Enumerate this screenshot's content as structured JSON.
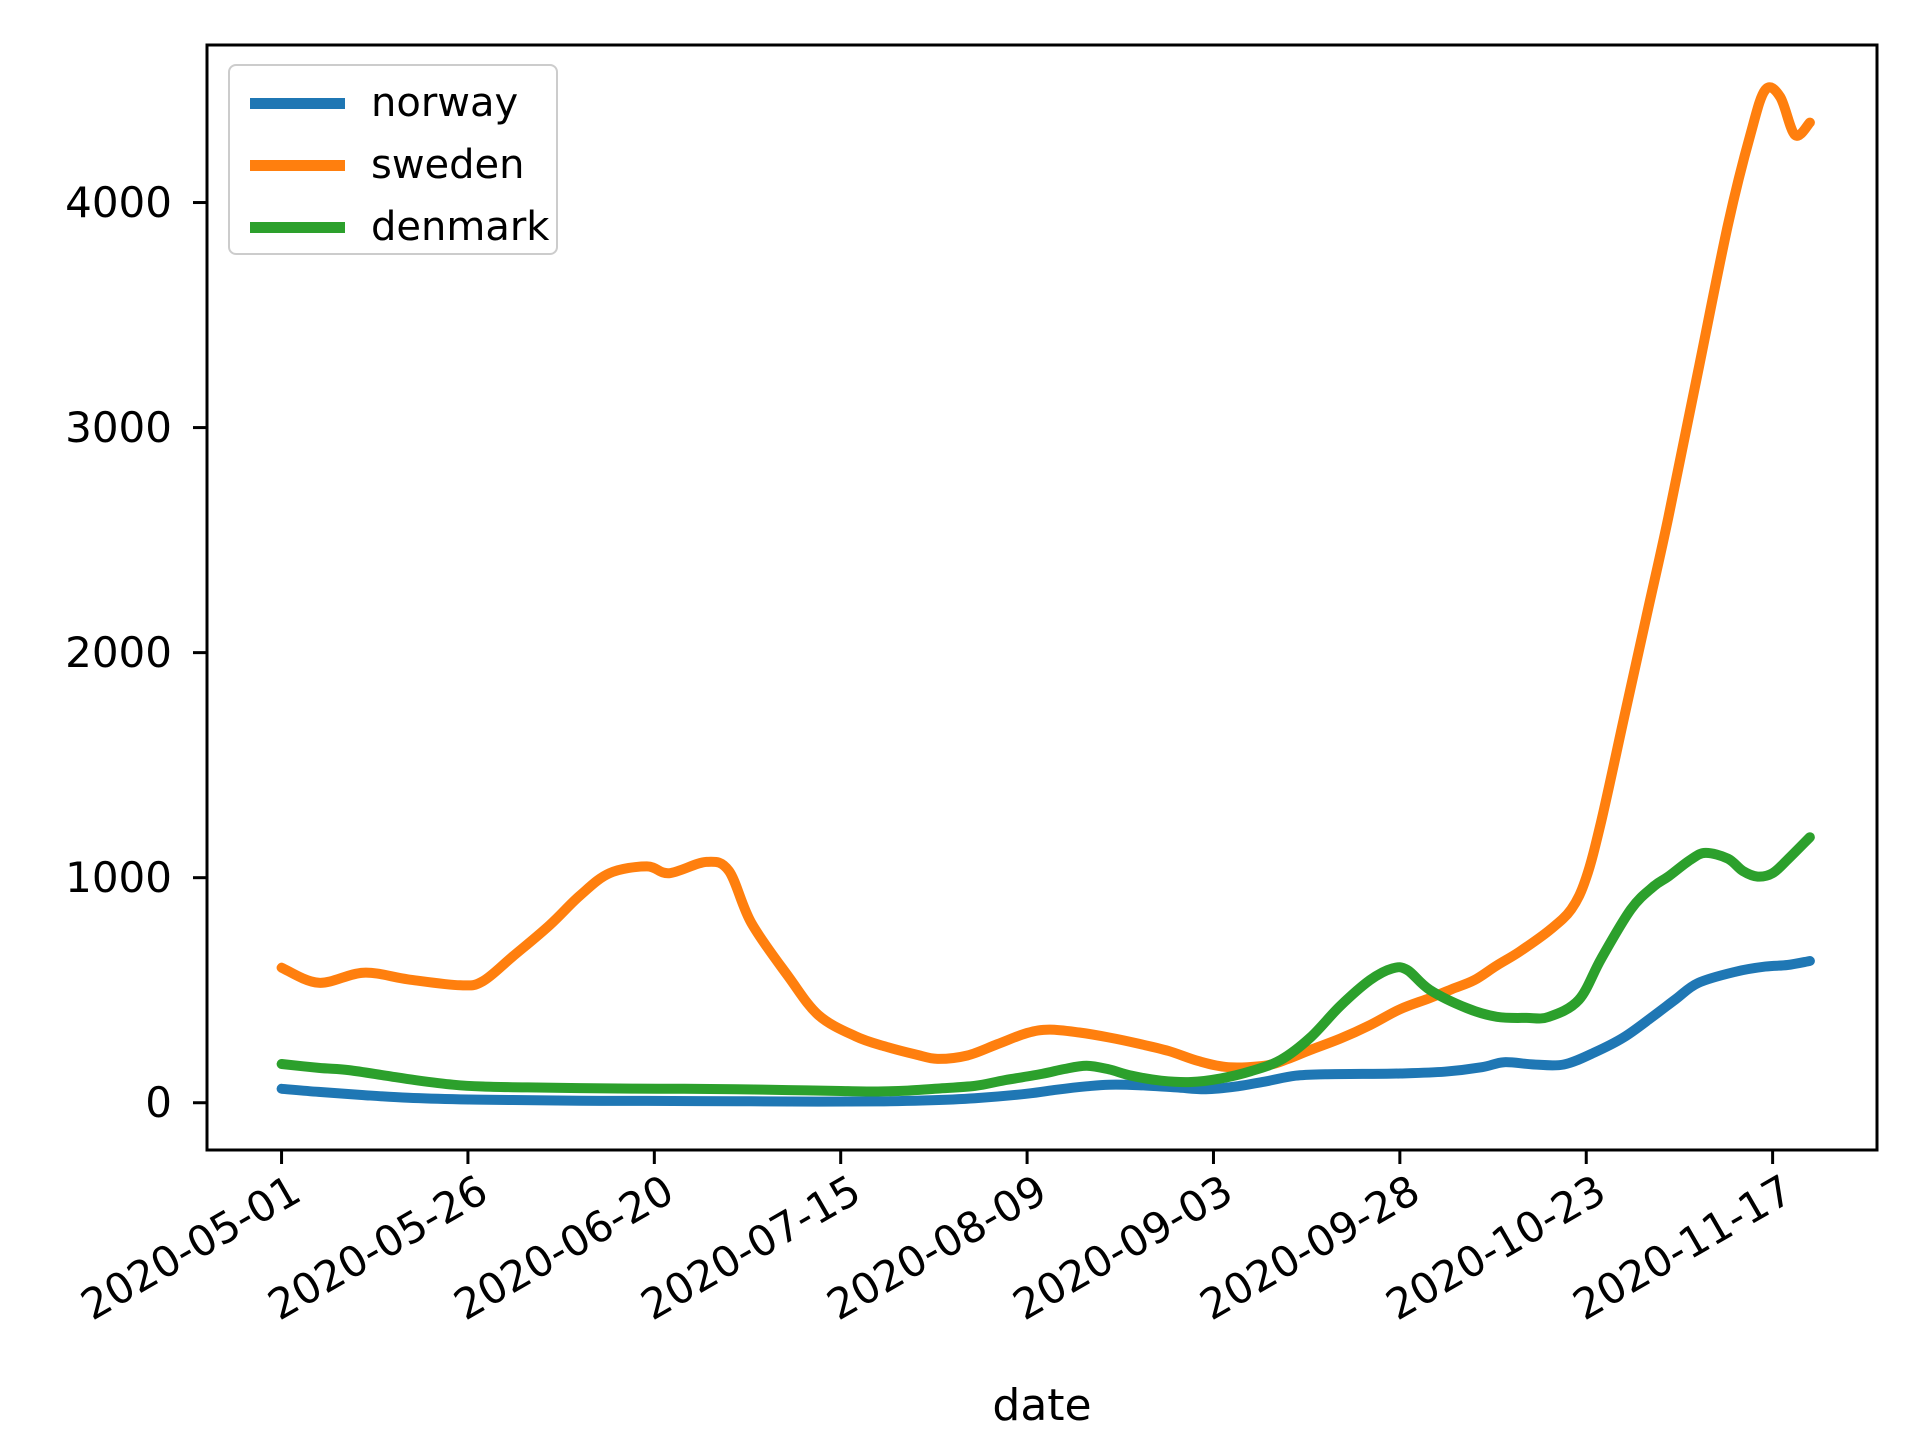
{
  "chart_data": {
    "type": "line",
    "title": "",
    "xlabel": "date",
    "ylabel": "",
    "grid": false,
    "legend_position": "upper left",
    "xlim": [
      "2020-04-21",
      "2020-12-01"
    ],
    "ylim": [
      -210,
      4700
    ],
    "y_ticks": [
      0,
      1000,
      2000,
      3000,
      4000
    ],
    "x_tick_labels": [
      "2020-05-01",
      "2020-05-26",
      "2020-06-20",
      "2020-07-15",
      "2020-08-09",
      "2020-09-03",
      "2020-09-28",
      "2020-10-23",
      "2020-11-17"
    ],
    "x_tick_rotation_deg": 30,
    "series": [
      {
        "name": "norway",
        "color": "#1f77b4",
        "points": [
          [
            "2020-05-01",
            62
          ],
          [
            "2020-05-06",
            48
          ],
          [
            "2020-05-12",
            34
          ],
          [
            "2020-05-18",
            22
          ],
          [
            "2020-05-25",
            15
          ],
          [
            "2020-06-01",
            12
          ],
          [
            "2020-06-10",
            9
          ],
          [
            "2020-06-19",
            8
          ],
          [
            "2020-07-01",
            7
          ],
          [
            "2020-07-12",
            5
          ],
          [
            "2020-07-20",
            6
          ],
          [
            "2020-07-26",
            10
          ],
          [
            "2020-08-02",
            20
          ],
          [
            "2020-08-09",
            40
          ],
          [
            "2020-08-13",
            58
          ],
          [
            "2020-08-17",
            73
          ],
          [
            "2020-08-20",
            80
          ],
          [
            "2020-08-24",
            78
          ],
          [
            "2020-08-29",
            68
          ],
          [
            "2020-09-02",
            60
          ],
          [
            "2020-09-06",
            72
          ],
          [
            "2020-09-10",
            95
          ],
          [
            "2020-09-14",
            120
          ],
          [
            "2020-09-18",
            127
          ],
          [
            "2020-09-23",
            128
          ],
          [
            "2020-09-28",
            130
          ],
          [
            "2020-10-04",
            138
          ],
          [
            "2020-10-09",
            158
          ],
          [
            "2020-10-12",
            180
          ],
          [
            "2020-10-16",
            170
          ],
          [
            "2020-10-20",
            170
          ],
          [
            "2020-10-24",
            222
          ],
          [
            "2020-10-28",
            290
          ],
          [
            "2020-11-01",
            385
          ],
          [
            "2020-11-04",
            460
          ],
          [
            "2020-11-07",
            532
          ],
          [
            "2020-11-12",
            582
          ],
          [
            "2020-11-16",
            605
          ],
          [
            "2020-11-19",
            612
          ],
          [
            "2020-11-22",
            630
          ]
        ]
      },
      {
        "name": "sweden",
        "color": "#ff7f0e",
        "points": [
          [
            "2020-05-01",
            600
          ],
          [
            "2020-05-06",
            533
          ],
          [
            "2020-05-12",
            578
          ],
          [
            "2020-05-18",
            548
          ],
          [
            "2020-05-25",
            522
          ],
          [
            "2020-05-28",
            540
          ],
          [
            "2020-06-01",
            650
          ],
          [
            "2020-06-06",
            790
          ],
          [
            "2020-06-10",
            920
          ],
          [
            "2020-06-14",
            1020
          ],
          [
            "2020-06-19",
            1050
          ],
          [
            "2020-06-22",
            1020
          ],
          [
            "2020-06-27",
            1070
          ],
          [
            "2020-06-30",
            1030
          ],
          [
            "2020-07-03",
            800
          ],
          [
            "2020-07-08",
            560
          ],
          [
            "2020-07-12",
            390
          ],
          [
            "2020-07-17",
            295
          ],
          [
            "2020-07-21",
            250
          ],
          [
            "2020-07-25",
            215
          ],
          [
            "2020-07-28",
            195
          ],
          [
            "2020-08-01",
            210
          ],
          [
            "2020-08-05",
            260
          ],
          [
            "2020-08-09",
            310
          ],
          [
            "2020-08-12",
            325
          ],
          [
            "2020-08-16",
            312
          ],
          [
            "2020-08-20",
            290
          ],
          [
            "2020-08-24",
            262
          ],
          [
            "2020-08-28",
            230
          ],
          [
            "2020-09-01",
            185
          ],
          [
            "2020-09-05",
            158
          ],
          [
            "2020-09-10",
            165
          ],
          [
            "2020-09-13",
            195
          ],
          [
            "2020-09-16",
            235
          ],
          [
            "2020-09-20",
            285
          ],
          [
            "2020-09-24",
            345
          ],
          [
            "2020-09-28",
            415
          ],
          [
            "2020-10-02",
            465
          ],
          [
            "2020-10-05",
            505
          ],
          [
            "2020-10-08",
            545
          ],
          [
            "2020-10-11",
            610
          ],
          [
            "2020-10-14",
            670
          ],
          [
            "2020-10-18",
            765
          ],
          [
            "2020-10-21",
            860
          ],
          [
            "2020-10-23",
            1000
          ],
          [
            "2020-10-25",
            1250
          ],
          [
            "2020-10-28",
            1700
          ],
          [
            "2020-10-31",
            2150
          ],
          [
            "2020-11-03",
            2600
          ],
          [
            "2020-11-07",
            3250
          ],
          [
            "2020-11-11",
            3900
          ],
          [
            "2020-11-14",
            4300
          ],
          [
            "2020-11-16",
            4500
          ],
          [
            "2020-11-18",
            4470
          ],
          [
            "2020-11-20",
            4300
          ],
          [
            "2020-11-22",
            4355
          ]
        ]
      },
      {
        "name": "denmark",
        "color": "#2ca02c",
        "points": [
          [
            "2020-05-01",
            172
          ],
          [
            "2020-05-06",
            155
          ],
          [
            "2020-05-10",
            145
          ],
          [
            "2020-05-15",
            120
          ],
          [
            "2020-05-19",
            100
          ],
          [
            "2020-05-24",
            80
          ],
          [
            "2020-05-28",
            72
          ],
          [
            "2020-06-03",
            68
          ],
          [
            "2020-06-10",
            65
          ],
          [
            "2020-06-17",
            63
          ],
          [
            "2020-06-24",
            62
          ],
          [
            "2020-07-01",
            60
          ],
          [
            "2020-07-08",
            56
          ],
          [
            "2020-07-15",
            52
          ],
          [
            "2020-07-20",
            50
          ],
          [
            "2020-07-24",
            54
          ],
          [
            "2020-07-28",
            63
          ],
          [
            "2020-08-02",
            75
          ],
          [
            "2020-08-06",
            100
          ],
          [
            "2020-08-11",
            128
          ],
          [
            "2020-08-14",
            150
          ],
          [
            "2020-08-17",
            164
          ],
          [
            "2020-08-20",
            148
          ],
          [
            "2020-08-23",
            120
          ],
          [
            "2020-08-27",
            98
          ],
          [
            "2020-08-31",
            92
          ],
          [
            "2020-09-04",
            108
          ],
          [
            "2020-09-08",
            140
          ],
          [
            "2020-09-12",
            190
          ],
          [
            "2020-09-16",
            290
          ],
          [
            "2020-09-20",
            430
          ],
          [
            "2020-09-24",
            545
          ],
          [
            "2020-09-27",
            597
          ],
          [
            "2020-09-29",
            590
          ],
          [
            "2020-10-02",
            502
          ],
          [
            "2020-10-07",
            420
          ],
          [
            "2020-10-11",
            382
          ],
          [
            "2020-10-15",
            377
          ],
          [
            "2020-10-18",
            382
          ],
          [
            "2020-10-22",
            457
          ],
          [
            "2020-10-25",
            640
          ],
          [
            "2020-10-29",
            860
          ],
          [
            "2020-11-01",
            960
          ],
          [
            "2020-11-03",
            1005
          ],
          [
            "2020-11-06",
            1080
          ],
          [
            "2020-11-08",
            1110
          ],
          [
            "2020-11-11",
            1085
          ],
          [
            "2020-11-13",
            1030
          ],
          [
            "2020-11-15",
            1005
          ],
          [
            "2020-11-17",
            1020
          ],
          [
            "2020-11-19",
            1080
          ],
          [
            "2020-11-22",
            1180
          ]
        ]
      }
    ]
  }
}
